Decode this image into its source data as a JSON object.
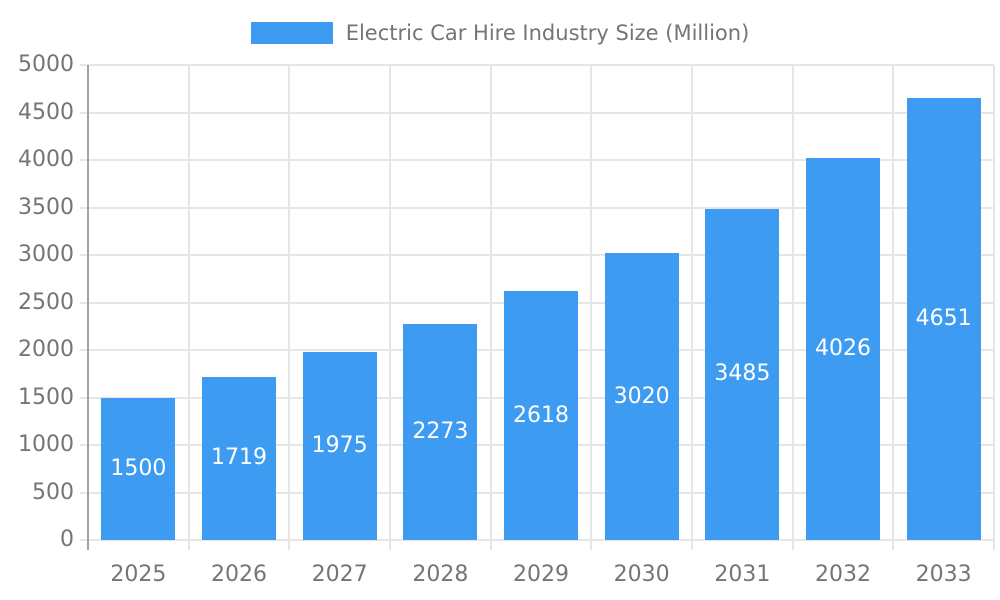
{
  "legend": {
    "label": "Electric Car Hire Industry Size (Million)"
  },
  "colors": {
    "bar": "#3d9cf2",
    "grid": "#e6e6e6",
    "axis": "#a2a2a2",
    "tick_label": "#757575",
    "value_label": "#ffffff",
    "background": "#ffffff"
  },
  "chart_data": {
    "type": "bar",
    "title": "Electric Car Hire Industry Size (Million)",
    "categories": [
      "2025",
      "2026",
      "2027",
      "2028",
      "2029",
      "2030",
      "2031",
      "2032",
      "2033"
    ],
    "values": [
      1500,
      1719,
      1975,
      2273,
      2618,
      3020,
      3485,
      4026,
      4651
    ],
    "series_name": "Electric Car Hire Industry Size (Million)",
    "xlabel": "",
    "ylabel": "",
    "ylim": [
      0,
      5000
    ],
    "yticks": [
      0,
      500,
      1000,
      1500,
      2000,
      2500,
      3000,
      3500,
      4000,
      4500,
      5000
    ],
    "grid": true,
    "legend_position": "top-center",
    "value_label_position": "inside-center"
  }
}
